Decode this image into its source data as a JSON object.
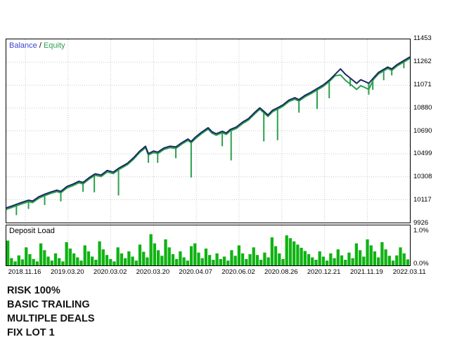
{
  "legend": {
    "balance_label": "Balance",
    "separator": " / ",
    "equity_label": "Equity"
  },
  "deposit_panel": {
    "title": "Deposit Load"
  },
  "footer": {
    "lines": [
      "RISK 100%",
      "BASIC TRAILING",
      "MULTIPLE DEALS",
      "FIX LOT 1"
    ]
  },
  "colors": {
    "balance_line": "#1b2a63",
    "equity_line": "#2aa14c",
    "deposit_bars": "#0fb312",
    "grid": "#c9c9c9",
    "panel_border": "#000000",
    "legend_balance_text": "#3a46d4",
    "legend_equity_text": "#2da04e"
  },
  "chart_data": [
    {
      "type": "line",
      "title": "Balance / Equity",
      "legend": [
        "Balance",
        "Equity"
      ],
      "ylim": [
        9926,
        11453
      ],
      "y_ticks": [
        11453,
        11262,
        11071,
        10880,
        10690,
        10499,
        10308,
        10117,
        9926
      ],
      "x_tick_labels": [
        "2018.11.16",
        "2019.03.20",
        "2020.03.02",
        "2020.03.20",
        "2020.04.07",
        "2020.06.02",
        "2020.08.26",
        "2020.12.21",
        "2021.11.19",
        "2022.03.11"
      ],
      "grid": true,
      "series": [
        {
          "name": "Balance",
          "points": [
            [
              0.0,
              10048
            ],
            [
              0.012,
              10062
            ],
            [
              0.025,
              10078
            ],
            [
              0.04,
              10096
            ],
            [
              0.055,
              10112
            ],
            [
              0.065,
              10105
            ],
            [
              0.08,
              10140
            ],
            [
              0.095,
              10162
            ],
            [
              0.11,
              10180
            ],
            [
              0.125,
              10196
            ],
            [
              0.135,
              10186
            ],
            [
              0.15,
              10226
            ],
            [
              0.165,
              10246
            ],
            [
              0.18,
              10270
            ],
            [
              0.19,
              10260
            ],
            [
              0.205,
              10300
            ],
            [
              0.22,
              10332
            ],
            [
              0.235,
              10322
            ],
            [
              0.25,
              10360
            ],
            [
              0.265,
              10346
            ],
            [
              0.28,
              10382
            ],
            [
              0.3,
              10420
            ],
            [
              0.315,
              10465
            ],
            [
              0.33,
              10520
            ],
            [
              0.345,
              10562
            ],
            [
              0.352,
              10500
            ],
            [
              0.365,
              10522
            ],
            [
              0.375,
              10512
            ],
            [
              0.39,
              10546
            ],
            [
              0.405,
              10562
            ],
            [
              0.42,
              10556
            ],
            [
              0.435,
              10592
            ],
            [
              0.45,
              10622
            ],
            [
              0.458,
              10602
            ],
            [
              0.47,
              10642
            ],
            [
              0.485,
              10682
            ],
            [
              0.5,
              10716
            ],
            [
              0.51,
              10682
            ],
            [
              0.52,
              10666
            ],
            [
              0.535,
              10686
            ],
            [
              0.545,
              10672
            ],
            [
              0.555,
              10702
            ],
            [
              0.57,
              10722
            ],
            [
              0.585,
              10762
            ],
            [
              0.6,
              10792
            ],
            [
              0.615,
              10842
            ],
            [
              0.628,
              10882
            ],
            [
              0.635,
              10862
            ],
            [
              0.648,
              10822
            ],
            [
              0.66,
              10862
            ],
            [
              0.672,
              10882
            ],
            [
              0.685,
              10906
            ],
            [
              0.7,
              10946
            ],
            [
              0.715,
              10966
            ],
            [
              0.725,
              10950
            ],
            [
              0.74,
              10986
            ],
            [
              0.755,
              11012
            ],
            [
              0.77,
              11042
            ],
            [
              0.785,
              11072
            ],
            [
              0.8,
              11112
            ],
            [
              0.815,
              11162
            ],
            [
              0.828,
              11206
            ],
            [
              0.84,
              11162
            ],
            [
              0.855,
              11122
            ],
            [
              0.868,
              11086
            ],
            [
              0.878,
              11116
            ],
            [
              0.888,
              11102
            ],
            [
              0.898,
              11086
            ],
            [
              0.91,
              11132
            ],
            [
              0.922,
              11176
            ],
            [
              0.935,
              11202
            ],
            [
              0.945,
              11222
            ],
            [
              0.955,
              11206
            ],
            [
              0.968,
              11242
            ],
            [
              0.98,
              11266
            ],
            [
              1.0,
              11306
            ]
          ]
        },
        {
          "name": "Equity",
          "base_offset": 12,
          "extra_drop_regions": [
            {
              "from": 0.828,
              "to": 0.902,
              "drop": 38
            }
          ],
          "spikes": [
            [
              0.025,
              9988
            ],
            [
              0.055,
              10040
            ],
            [
              0.095,
              10072
            ],
            [
              0.135,
              10102
            ],
            [
              0.19,
              10182
            ],
            [
              0.218,
              10178
            ],
            [
              0.278,
              10152
            ],
            [
              0.352,
              10424
            ],
            [
              0.375,
              10424
            ],
            [
              0.42,
              10462
            ],
            [
              0.458,
              10302
            ],
            [
              0.535,
              10562
            ],
            [
              0.557,
              10444
            ],
            [
              0.638,
              10602
            ],
            [
              0.672,
              10612
            ],
            [
              0.725,
              10842
            ],
            [
              0.77,
              10872
            ],
            [
              0.8,
              10962
            ],
            [
              0.852,
              11062
            ],
            [
              0.898,
              10992
            ],
            [
              0.908,
              11032
            ],
            [
              0.935,
              11112
            ],
            [
              0.955,
              11152
            ],
            [
              0.985,
              11212
            ]
          ]
        }
      ]
    },
    {
      "type": "area",
      "title": "Deposit Load",
      "ylim": [
        0,
        1
      ],
      "y_tick_labels": [
        "1.0%",
        "0.0%"
      ],
      "bar_values": [
        0.62,
        0.18,
        0.1,
        0.25,
        0.15,
        0.45,
        0.28,
        0.16,
        0.1,
        0.55,
        0.38,
        0.22,
        0.12,
        0.3,
        0.18,
        0.1,
        0.58,
        0.42,
        0.3,
        0.2,
        0.12,
        0.5,
        0.35,
        0.22,
        0.14,
        0.6,
        0.4,
        0.26,
        0.16,
        0.1,
        0.45,
        0.3,
        0.18,
        0.35,
        0.22,
        0.12,
        0.52,
        0.34,
        0.2,
        0.78,
        0.55,
        0.38,
        0.24,
        0.65,
        0.45,
        0.28,
        0.16,
        0.35,
        0.2,
        0.12,
        0.48,
        0.55,
        0.32,
        0.18,
        0.42,
        0.26,
        0.14,
        0.3,
        0.16,
        0.22,
        0.12,
        0.38,
        0.24,
        0.5,
        0.3,
        0.16,
        0.28,
        0.45,
        0.26,
        0.14,
        0.32,
        0.2,
        0.7,
        0.48,
        0.3,
        0.16,
        0.75,
        0.68,
        0.6,
        0.52,
        0.44,
        0.36,
        0.28,
        0.2,
        0.14,
        0.35,
        0.22,
        0.12,
        0.3,
        0.18,
        0.4,
        0.25,
        0.14,
        0.32,
        0.18,
        0.55,
        0.38,
        0.22,
        0.65,
        0.5,
        0.35,
        0.2,
        0.58,
        0.4,
        0.24,
        0.12,
        0.25,
        0.45,
        0.3,
        0.15
      ]
    }
  ]
}
